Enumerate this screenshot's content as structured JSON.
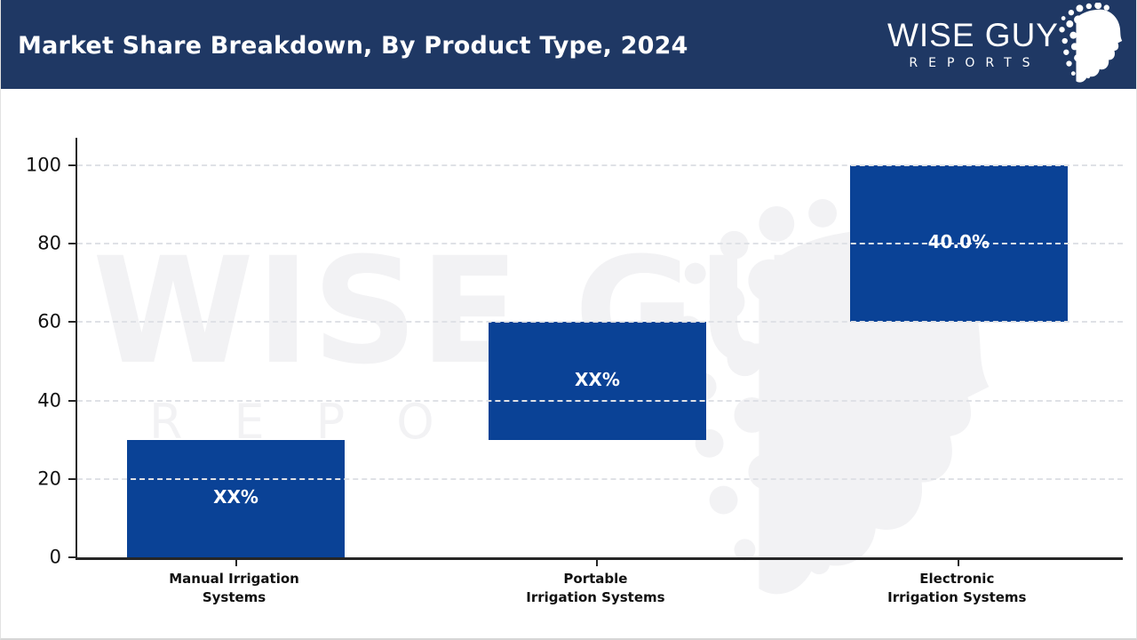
{
  "header": {
    "title": "Market Share Breakdown, By Product Type, 2024",
    "logo": {
      "name_line": "WISE GUY",
      "sub_line": "REPORTS"
    }
  },
  "watermark": {
    "name_line": "WISE GUY",
    "sub_line": "REPORTS"
  },
  "colors": {
    "header_bg": "#1f3864",
    "bar": "#0a4296",
    "value_label": "#ffffff",
    "axis": "#262626",
    "gridline": "#dfe1e6",
    "watermark": "#f2f2f4"
  },
  "chart_data": {
    "type": "bar",
    "subtype": "waterfall",
    "title": "Market Share Breakdown, By Product Type, 2024",
    "categories": [
      "Manual Irrigation Systems",
      "Portable Irrigation Systems",
      "Electronic Irrigation Systems"
    ],
    "bars": [
      {
        "category": "Manual Irrigation Systems",
        "label_lines": [
          "Manual Irrigation",
          "Systems"
        ],
        "base": 0,
        "top": 30,
        "value_label": "XX%"
      },
      {
        "category": "Portable Irrigation Systems",
        "label_lines": [
          "Portable",
          "Irrigation Systems"
        ],
        "base": 30,
        "top": 60,
        "value_label": "XX%"
      },
      {
        "category": "Electronic Irrigation Systems",
        "label_lines": [
          "Electronic",
          "Irrigation Systems"
        ],
        "base": 60,
        "top": 100,
        "value_label": "40.0%"
      }
    ],
    "yticks": [
      0,
      20,
      40,
      60,
      80,
      100
    ],
    "ylim": [
      0,
      107
    ],
    "xlabel": "",
    "ylabel": "",
    "grid": "horizontal-dashed",
    "legend": "none",
    "bar_color": "#0a4296",
    "value_label_color": "#ffffff"
  }
}
